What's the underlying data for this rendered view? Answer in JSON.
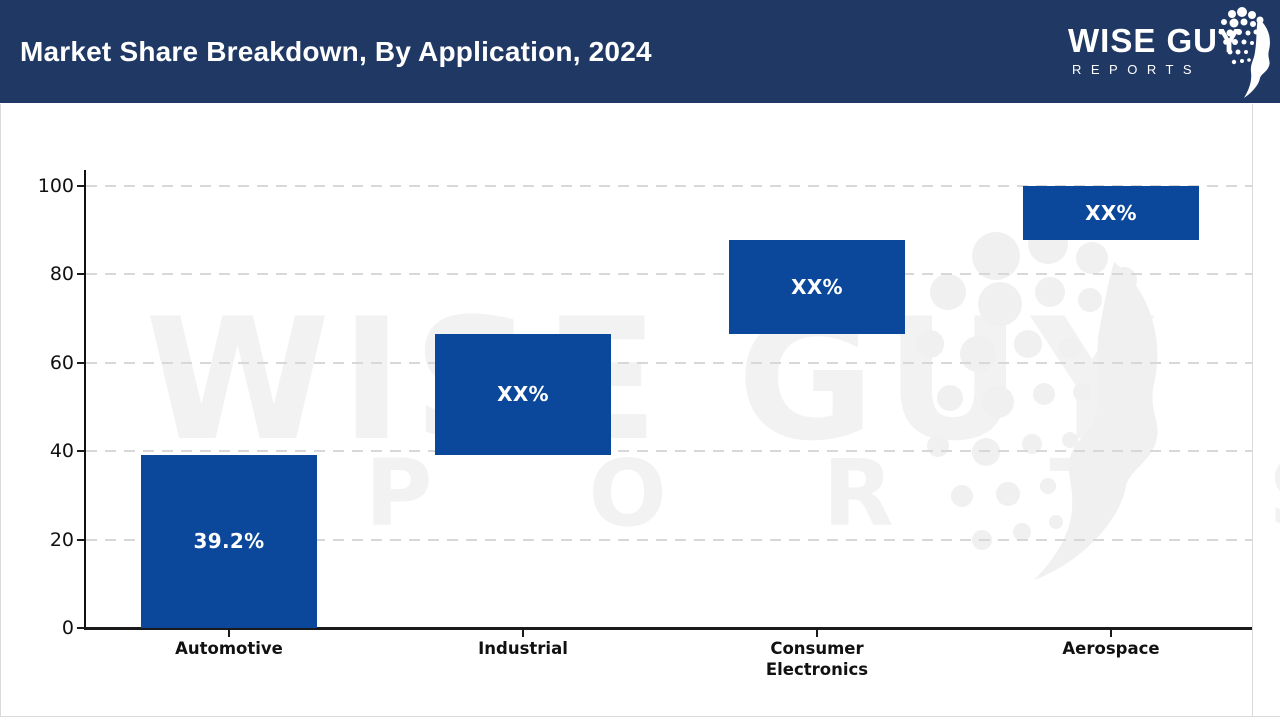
{
  "header": {
    "title": "Market Share Breakdown, By Application, 2024",
    "bg_color": "#1f3864",
    "logo": {
      "line1": "WISE GUY",
      "line2": "REPORTS"
    }
  },
  "watermark": {
    "line1": "WISE GUY",
    "line2": "P O R T S"
  },
  "chart_data": {
    "type": "bar",
    "variant": "floating-waterfall",
    "title": "Market Share Breakdown, By Application, 2024",
    "categories": [
      "Automotive",
      "Industrial",
      "Consumer Electronics",
      "Aerospace"
    ],
    "category_label_lines": [
      [
        "Automotive"
      ],
      [
        "Industrial"
      ],
      [
        "Consumer",
        "Electronics"
      ],
      [
        "Aerospace"
      ]
    ],
    "segments": [
      {
        "category": "Automotive",
        "from": 0,
        "to": 39.2,
        "label": "39.2%"
      },
      {
        "category": "Industrial",
        "from": 39.2,
        "to": 66.5,
        "label": "XX%"
      },
      {
        "category": "Consumer Electronics",
        "from": 66.5,
        "to": 87.7,
        "label": "XX%"
      },
      {
        "category": "Aerospace",
        "from": 87.7,
        "to": 100,
        "label": "XX%"
      }
    ],
    "ylim": [
      0,
      100
    ],
    "yticks": [
      0,
      20,
      40,
      60,
      80,
      100
    ],
    "xlabel": "",
    "ylabel": "",
    "bar_color": "#0b479b",
    "bar_label_color": "#ffffff",
    "grid": {
      "axis": "y",
      "style": "dashed",
      "color": "#d8d8d8"
    },
    "legend": "none"
  }
}
